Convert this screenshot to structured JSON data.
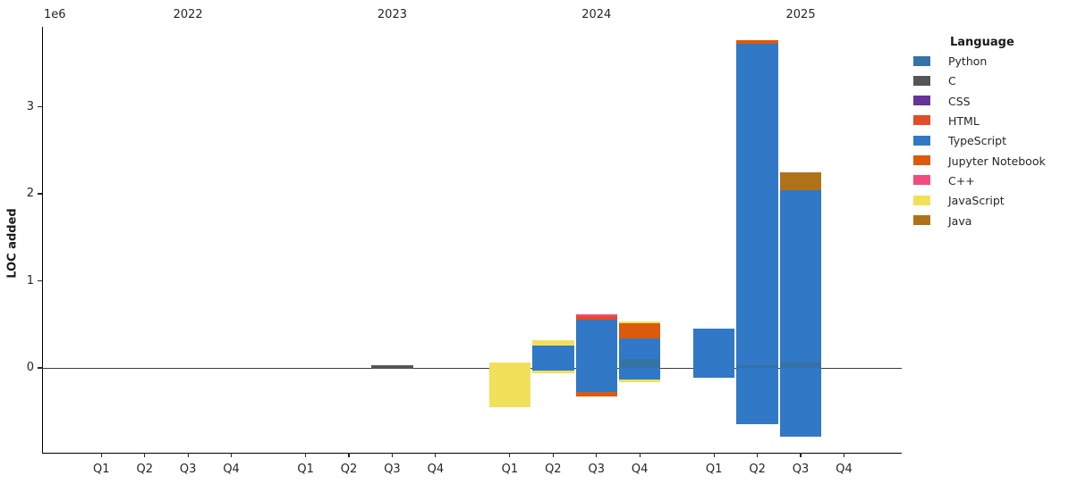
{
  "chart_data": {
    "type": "bar",
    "stacked": true,
    "title": "",
    "ylabel": "LOC added",
    "y_scale_note": "1e6",
    "y_unit": "millions of LOC",
    "y_ticks": [
      0,
      1,
      2,
      3
    ],
    "ylim": [
      -0.97,
      3.92
    ],
    "grid": false,
    "years": [
      "2022",
      "2023",
      "2024",
      "2025"
    ],
    "quarter_labels": [
      "Q1",
      "Q2",
      "Q3",
      "Q4"
    ],
    "legend_position": "right",
    "legend": {
      "title": "Language",
      "entries": [
        {
          "label": "Python",
          "color": "#3572A5"
        },
        {
          "label": "C",
          "color": "#555555"
        },
        {
          "label": "CSS",
          "color": "#663399"
        },
        {
          "label": "HTML",
          "color": "#e34c26"
        },
        {
          "label": "TypeScript",
          "color": "#3178c6"
        },
        {
          "label": "Jupyter Notebook",
          "color": "#DA5B0B"
        },
        {
          "label": "C++",
          "color": "#f34b7d"
        },
        {
          "label": "JavaScript",
          "color": "#f1e05a"
        },
        {
          "label": "Java",
          "color": "#b07219"
        }
      ]
    },
    "bars": [
      {
        "year": "2023",
        "quarter": "Q3",
        "segments": [
          {
            "language": "C",
            "top": 0.03,
            "bottom": -0.015
          }
        ]
      },
      {
        "year": "2024",
        "quarter": "Q1",
        "segments": [
          {
            "language": "JavaScript",
            "top": 0.06,
            "bottom": -0.45
          }
        ]
      },
      {
        "year": "2024",
        "quarter": "Q2",
        "segments": [
          {
            "language": "JavaScript",
            "top": 0.32,
            "bottom": 0.26
          },
          {
            "language": "TypeScript",
            "top": 0.26,
            "bottom": -0.03
          },
          {
            "language": "JavaScript",
            "top": -0.03,
            "bottom": -0.06
          }
        ]
      },
      {
        "year": "2024",
        "quarter": "Q3",
        "segments": [
          {
            "language": "C++",
            "top": 0.62,
            "bottom": 0.59
          },
          {
            "language": "HTML",
            "top": 0.59,
            "bottom": 0.55
          },
          {
            "language": "TypeScript",
            "top": 0.55,
            "bottom": -0.28
          },
          {
            "language": "Jupyter Notebook",
            "top": -0.28,
            "bottom": -0.33
          }
        ]
      },
      {
        "year": "2024",
        "quarter": "Q4",
        "segments": [
          {
            "language": "JavaScript",
            "top": 0.53,
            "bottom": 0.51
          },
          {
            "language": "Jupyter Notebook",
            "top": 0.51,
            "bottom": 0.34
          },
          {
            "language": "TypeScript",
            "top": 0.34,
            "bottom": 0.1
          },
          {
            "language": "Python",
            "top": 0.1,
            "bottom": 0.0
          },
          {
            "language": "TypeScript",
            "top": 0.0,
            "bottom": -0.13
          },
          {
            "language": "JavaScript",
            "top": -0.13,
            "bottom": -0.16
          }
        ]
      },
      {
        "year": "2025",
        "quarter": "Q1",
        "segments": [
          {
            "language": "TypeScript",
            "top": 0.45,
            "bottom": -0.11
          }
        ]
      },
      {
        "year": "2025",
        "quarter": "Q2",
        "segments": [
          {
            "language": "Jupyter Notebook",
            "top": 3.76,
            "bottom": 3.72
          },
          {
            "language": "TypeScript",
            "top": 3.72,
            "bottom": 0.03
          },
          {
            "language": "Python",
            "top": 0.03,
            "bottom": 0.0
          },
          {
            "language": "TypeScript",
            "top": 0.0,
            "bottom": -0.65
          }
        ]
      },
      {
        "year": "2025",
        "quarter": "Q3",
        "segments": [
          {
            "language": "Java",
            "top": 2.25,
            "bottom": 2.04
          },
          {
            "language": "TypeScript",
            "top": 2.04,
            "bottom": 0.06
          },
          {
            "language": "Python",
            "top": 0.06,
            "bottom": 0.0
          },
          {
            "language": "TypeScript",
            "top": 0.0,
            "bottom": -0.79
          }
        ]
      }
    ]
  }
}
